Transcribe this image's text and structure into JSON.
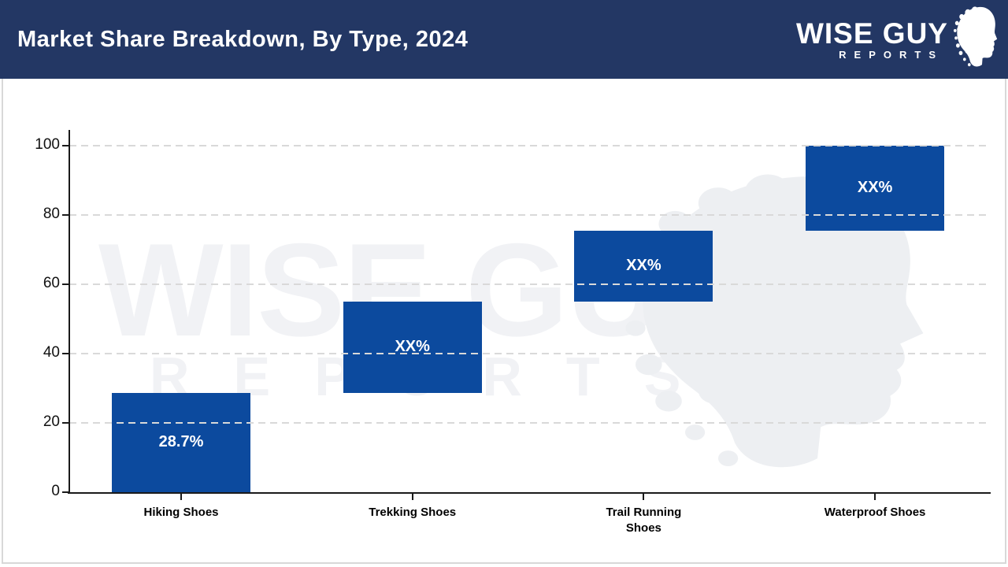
{
  "header": {
    "title": "Market Share Breakdown, By Type, 2024",
    "background_color": "#233764",
    "logo": {
      "title": "WISE GUY",
      "subtitle": "REPORTS"
    }
  },
  "watermark": {
    "title": "WISE GUY",
    "subtitle": "REPORTS",
    "color": "#f1f2f5"
  },
  "chart_data": {
    "type": "bar",
    "subtype": "waterfall",
    "title": "Market Share Breakdown, By Type, 2024",
    "xlabel": "",
    "ylabel": "",
    "ylim": [
      0,
      100
    ],
    "yticks": [
      0,
      20,
      40,
      60,
      80,
      100
    ],
    "grid": "horizontal-dashed",
    "legend": "none",
    "bar_color": "#0c4a9e",
    "bar_label_color": "#ffffff",
    "axis_color": "#1a1a1a",
    "grid_color": "#d9d9d9",
    "categories": [
      "Hiking Shoes",
      "Trekking Shoes",
      "Trail Running Shoes",
      "Waterproof Shoes"
    ],
    "segments": [
      {
        "category": "Hiking Shoes",
        "label_lines": [
          "Hiking Shoes"
        ],
        "start": 0,
        "end": 28.7,
        "label": "28.7%"
      },
      {
        "category": "Trekking Shoes",
        "label_lines": [
          "Trekking Shoes"
        ],
        "start": 28.7,
        "end": 55,
        "label": "XX%"
      },
      {
        "category": "Trail Running Shoes",
        "label_lines": [
          "Trail Running",
          "Shoes"
        ],
        "start": 55,
        "end": 75.5,
        "label": "XX%"
      },
      {
        "category": "Waterproof Shoes",
        "label_lines": [
          "Waterproof Shoes"
        ],
        "start": 75.5,
        "end": 100,
        "label": "XX%"
      }
    ]
  }
}
